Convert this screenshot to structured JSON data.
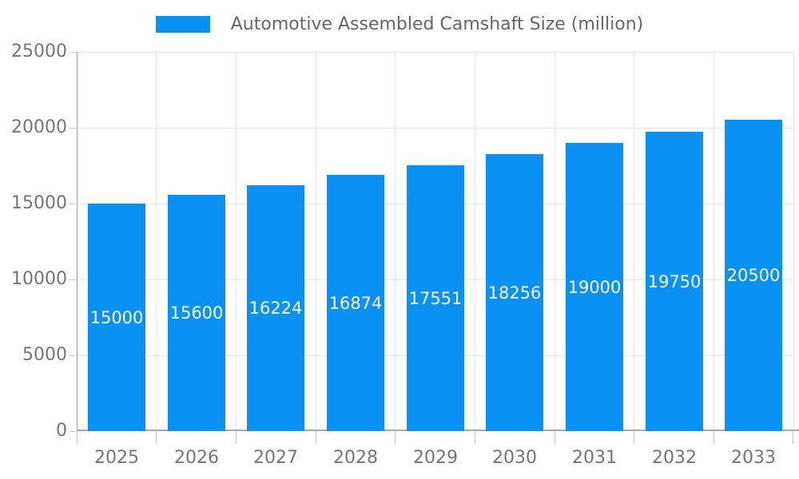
{
  "legend": {
    "label": "Automotive Assembled Camshaft Size (million)"
  },
  "colors": {
    "bar": "#0991f3",
    "grid": "#e6e6e6",
    "y_axis_line": "#999999",
    "x_axis_line": "#aaaaaa",
    "tick": "#c6c6c6",
    "axis_text": "#757575",
    "legend_text": "#666666",
    "bar_label_text": "#ffffff",
    "background": "#ffffff"
  },
  "chart_data": {
    "type": "bar",
    "title": "Automotive Assembled Camshaft Size (million)",
    "series_name": "Automotive Assembled Camshaft Size (million)",
    "categories": [
      "2025",
      "2026",
      "2027",
      "2028",
      "2029",
      "2030",
      "2031",
      "2032",
      "2033"
    ],
    "values": [
      15000,
      15600,
      16224,
      16874,
      17551,
      18256,
      19000,
      19750,
      20500
    ],
    "xlabel": "",
    "ylabel": "",
    "ylim": [
      0,
      25000
    ],
    "yticks": [
      0,
      5000,
      10000,
      15000,
      20000,
      25000
    ],
    "grid": true,
    "legend_position": "top",
    "bar_labels": "inside-center"
  }
}
